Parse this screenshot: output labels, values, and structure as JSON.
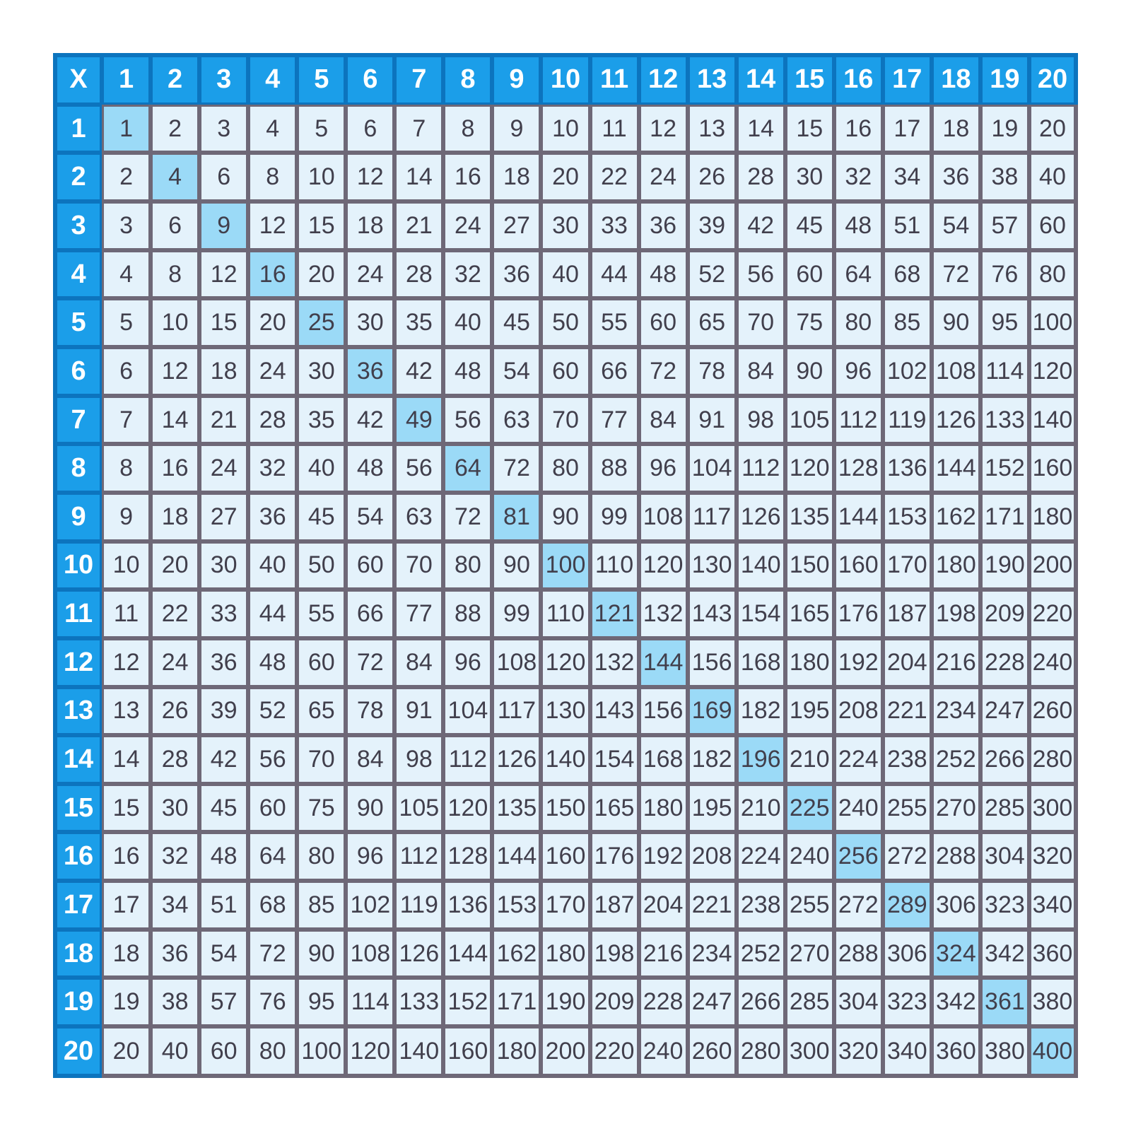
{
  "colors": {
    "page_background": "#ffffff",
    "header_bg": "#1b9ee9",
    "header_border": "#0c74be",
    "header_text": "#ffffff",
    "cell_bg": "#e4f2fb",
    "diagonal_bg": "#9bdaf7",
    "grid_border": "#6e6877",
    "cell_text": "#413f4c"
  },
  "chart_data": {
    "type": "table",
    "corner_label": "X",
    "column_headers": [
      "1",
      "2",
      "3",
      "4",
      "5",
      "6",
      "7",
      "8",
      "9",
      "10",
      "11",
      "12",
      "13",
      "14",
      "15",
      "16",
      "17",
      "18",
      "19",
      "20"
    ],
    "row_headers": [
      "1",
      "2",
      "3",
      "4",
      "5",
      "6",
      "7",
      "8",
      "9",
      "10",
      "11",
      "12",
      "13",
      "14",
      "15",
      "16",
      "17",
      "18",
      "19",
      "20"
    ],
    "rows": [
      [
        1,
        2,
        3,
        4,
        5,
        6,
        7,
        8,
        9,
        10,
        11,
        12,
        13,
        14,
        15,
        16,
        17,
        18,
        19,
        20
      ],
      [
        2,
        4,
        6,
        8,
        10,
        12,
        14,
        16,
        18,
        20,
        22,
        24,
        26,
        28,
        30,
        32,
        34,
        36,
        38,
        40
      ],
      [
        3,
        6,
        9,
        12,
        15,
        18,
        21,
        24,
        27,
        30,
        33,
        36,
        39,
        42,
        45,
        48,
        51,
        54,
        57,
        60
      ],
      [
        4,
        8,
        12,
        16,
        20,
        24,
        28,
        32,
        36,
        40,
        44,
        48,
        52,
        56,
        60,
        64,
        68,
        72,
        76,
        80
      ],
      [
        5,
        10,
        15,
        20,
        25,
        30,
        35,
        40,
        45,
        50,
        55,
        60,
        65,
        70,
        75,
        80,
        85,
        90,
        95,
        100
      ],
      [
        6,
        12,
        18,
        24,
        30,
        36,
        42,
        48,
        54,
        60,
        66,
        72,
        78,
        84,
        90,
        96,
        102,
        108,
        114,
        120
      ],
      [
        7,
        14,
        21,
        28,
        35,
        42,
        49,
        56,
        63,
        70,
        77,
        84,
        91,
        98,
        105,
        112,
        119,
        126,
        133,
        140
      ],
      [
        8,
        16,
        24,
        32,
        40,
        48,
        56,
        64,
        72,
        80,
        88,
        96,
        104,
        112,
        120,
        128,
        136,
        144,
        152,
        160
      ],
      [
        9,
        18,
        27,
        36,
        45,
        54,
        63,
        72,
        81,
        90,
        99,
        108,
        117,
        126,
        135,
        144,
        153,
        162,
        171,
        180
      ],
      [
        10,
        20,
        30,
        40,
        50,
        60,
        70,
        80,
        90,
        100,
        110,
        120,
        130,
        140,
        150,
        160,
        170,
        180,
        190,
        200
      ],
      [
        11,
        22,
        33,
        44,
        55,
        66,
        77,
        88,
        99,
        110,
        121,
        132,
        143,
        154,
        165,
        176,
        187,
        198,
        209,
        220
      ],
      [
        12,
        24,
        36,
        48,
        60,
        72,
        84,
        96,
        108,
        120,
        132,
        144,
        156,
        168,
        180,
        192,
        204,
        216,
        228,
        240
      ],
      [
        13,
        26,
        39,
        52,
        65,
        78,
        91,
        104,
        117,
        130,
        143,
        156,
        169,
        182,
        195,
        208,
        221,
        234,
        247,
        260
      ],
      [
        14,
        28,
        42,
        56,
        70,
        84,
        98,
        112,
        126,
        140,
        154,
        168,
        182,
        196,
        210,
        224,
        238,
        252,
        266,
        280
      ],
      [
        15,
        30,
        45,
        60,
        75,
        90,
        105,
        120,
        135,
        150,
        165,
        180,
        195,
        210,
        225,
        240,
        255,
        270,
        285,
        300
      ],
      [
        16,
        32,
        48,
        64,
        80,
        96,
        112,
        128,
        144,
        160,
        176,
        192,
        208,
        224,
        240,
        256,
        272,
        288,
        304,
        320
      ],
      [
        17,
        34,
        51,
        68,
        85,
        102,
        119,
        136,
        153,
        170,
        187,
        204,
        221,
        238,
        255,
        272,
        289,
        306,
        323,
        340
      ],
      [
        18,
        36,
        54,
        72,
        90,
        108,
        126,
        144,
        162,
        180,
        198,
        216,
        234,
        252,
        270,
        288,
        306,
        324,
        342,
        360
      ],
      [
        19,
        38,
        57,
        76,
        95,
        114,
        133,
        152,
        171,
        190,
        209,
        228,
        247,
        266,
        285,
        304,
        323,
        342,
        361,
        380
      ],
      [
        20,
        40,
        60,
        80,
        100,
        120,
        140,
        160,
        180,
        200,
        220,
        240,
        260,
        280,
        300,
        320,
        340,
        360,
        380,
        400
      ]
    ],
    "highlight_diagonal_squares": true,
    "layout": {
      "grid": "on",
      "legend": "none"
    }
  }
}
